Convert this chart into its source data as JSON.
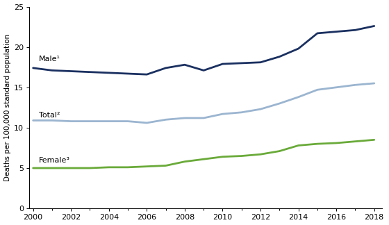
{
  "years": [
    2000,
    2001,
    2002,
    2003,
    2004,
    2005,
    2006,
    2007,
    2008,
    2009,
    2010,
    2011,
    2012,
    2013,
    2014,
    2015,
    2016,
    2017,
    2018
  ],
  "male": [
    17.4,
    17.1,
    17.0,
    16.9,
    16.8,
    16.7,
    16.6,
    17.4,
    17.8,
    17.1,
    17.9,
    18.0,
    18.1,
    18.8,
    19.8,
    21.7,
    21.9,
    22.1,
    22.6
  ],
  "total": [
    10.9,
    10.9,
    10.8,
    10.8,
    10.8,
    10.8,
    10.6,
    11.0,
    11.2,
    11.2,
    11.7,
    11.9,
    12.3,
    13.0,
    13.8,
    14.7,
    15.0,
    15.3,
    15.5
  ],
  "female": [
    5.0,
    5.0,
    5.0,
    5.0,
    5.1,
    5.1,
    5.2,
    5.3,
    5.8,
    6.1,
    6.4,
    6.5,
    6.7,
    7.1,
    7.8,
    8.0,
    8.1,
    8.3,
    8.5
  ],
  "male_color": "#1a3060",
  "total_color": "#9bb5d0",
  "female_color": "#6aaa3a",
  "male_label": "Male¹",
  "total_label": "Total²",
  "female_label": "Female³",
  "ylabel": "Deaths per 100,000 standard population",
  "ylim": [
    0,
    25
  ],
  "yticks": [
    0,
    5,
    10,
    15,
    20,
    25
  ],
  "xlim": [
    2000,
    2018
  ],
  "xticks": [
    2000,
    2002,
    2004,
    2006,
    2008,
    2010,
    2012,
    2014,
    2016,
    2018
  ],
  "linewidth": 2.0,
  "label_fontsize": 8.0,
  "tick_fontsize": 8.0,
  "ylabel_fontsize": 7.5
}
